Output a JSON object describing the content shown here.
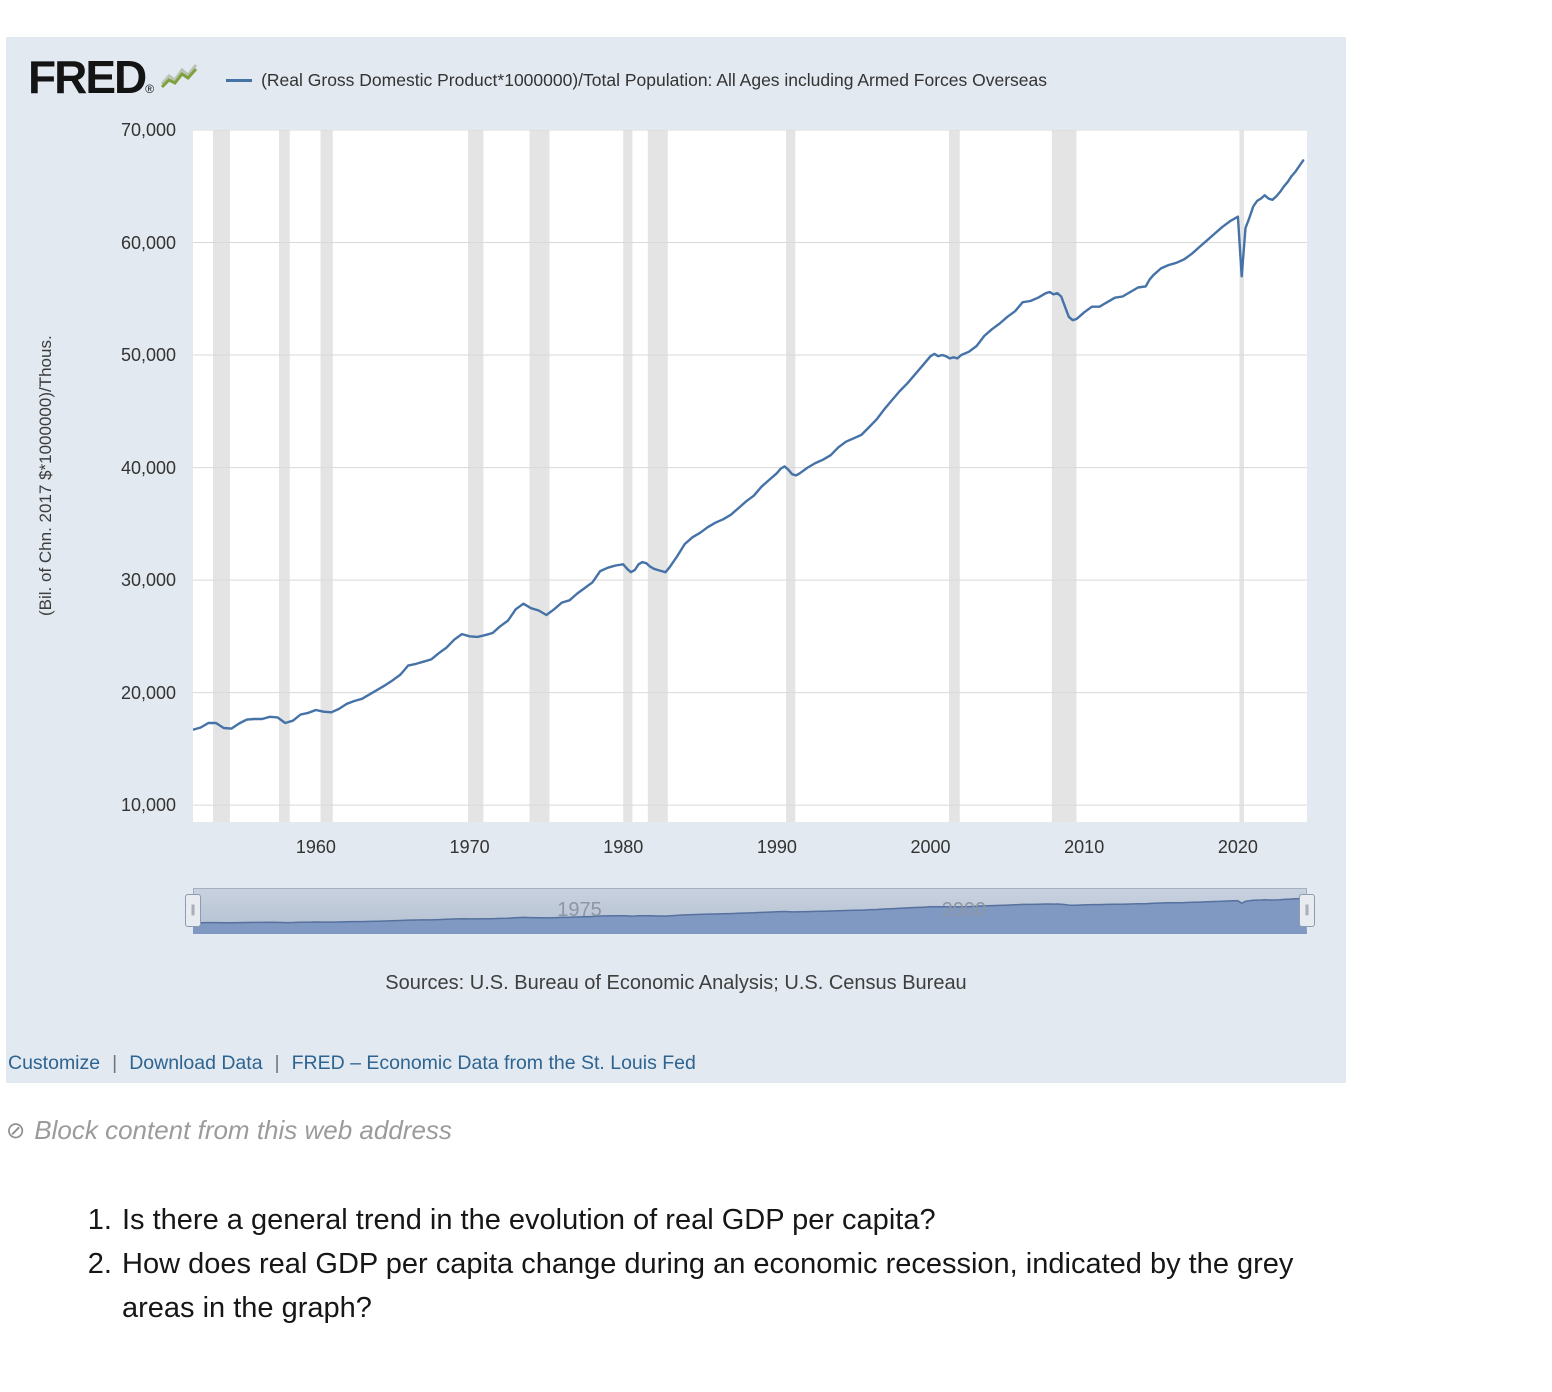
{
  "embed": {
    "logo_text": "FRED",
    "logo_reg": "®",
    "legend_label": "(Real Gross Domestic Product*1000000)/Total Population: All Ages including Armed Forces Overseas",
    "sources": "Sources: U.S. Bureau of Economic Analysis; U.S. Census Bureau",
    "links": [
      {
        "label": "Customize"
      },
      {
        "label": "Download Data"
      },
      {
        "label": "FRED – Economic Data from the St. Louis Fed"
      }
    ],
    "link_separator": "|"
  },
  "icons": {
    "blocked_glyph": "⊘",
    "slider_handle_glyph": "∥"
  },
  "block_note": "Block content from this web address",
  "questions": {
    "items": [
      "Is there a general trend in the evolution of real GDP per capita?",
      "How does real GDP per capita change during an economic recession, indicated by the grey areas in the graph?"
    ]
  },
  "chart_data": {
    "type": "line",
    "title": "(Real Gross Domestic Product*1000000)/Total Population: All Ages including Armed Forces Overseas",
    "ylabel": "(Bil. of Chn. 2017 $*1000000)/Thous.",
    "xlabel": "",
    "xlim": [
      1952,
      2024.5
    ],
    "ylim": [
      8500,
      70000
    ],
    "grid": "horizontal",
    "legend_position": "top",
    "y_ticks": [
      {
        "v": 10000,
        "label": "10,000"
      },
      {
        "v": 20000,
        "label": "20,000"
      },
      {
        "v": 30000,
        "label": "30,000"
      },
      {
        "v": 40000,
        "label": "40,000"
      },
      {
        "v": 50000,
        "label": "50,000"
      },
      {
        "v": 60000,
        "label": "60,000"
      },
      {
        "v": 70000,
        "label": "70,000"
      }
    ],
    "x_ticks": [
      {
        "v": 1960,
        "label": "1960"
      },
      {
        "v": 1970,
        "label": "1970"
      },
      {
        "v": 1980,
        "label": "1980"
      },
      {
        "v": 1990,
        "label": "1990"
      },
      {
        "v": 2000,
        "label": "2000"
      },
      {
        "v": 2010,
        "label": "2010"
      },
      {
        "v": 2020,
        "label": "2020"
      }
    ],
    "slider_labels": [
      {
        "x_frac": 0.347,
        "label": "1975"
      },
      {
        "x_frac": 0.692,
        "label": "2000"
      }
    ],
    "recessions": [
      [
        1953.3,
        1954.4
      ],
      [
        1957.6,
        1958.3
      ],
      [
        1960.3,
        1961.1
      ],
      [
        1969.9,
        1970.9
      ],
      [
        1973.9,
        1975.2
      ],
      [
        1980.0,
        1980.6
      ],
      [
        1981.6,
        1982.9
      ],
      [
        1990.6,
        1991.2
      ],
      [
        2001.2,
        2001.9
      ],
      [
        2007.9,
        2009.5
      ],
      [
        2020.1,
        2020.4
      ]
    ],
    "colors": {
      "line": "#4572a7",
      "recession": "#e4e4e4",
      "grid": "#d9d9d9",
      "plot_bg": "#ffffff",
      "embed_bg": "#e2e9f0",
      "mini_fill": "#8099c2",
      "mini_line": "#56719f"
    },
    "series": [
      {
        "name": "(Real Gross Domestic Product*1000000)/Total Population: All Ages including Armed Forces Overseas",
        "points": [
          [
            1952,
            16700
          ],
          [
            1952.5,
            16900
          ],
          [
            1953,
            17300
          ],
          [
            1953.5,
            17300
          ],
          [
            1954,
            16850
          ],
          [
            1954.5,
            16800
          ],
          [
            1955,
            17250
          ],
          [
            1955.5,
            17600
          ],
          [
            1956,
            17650
          ],
          [
            1956.5,
            17650
          ],
          [
            1957,
            17850
          ],
          [
            1957.5,
            17800
          ],
          [
            1958,
            17300
          ],
          [
            1958.5,
            17500
          ],
          [
            1959,
            18050
          ],
          [
            1959.5,
            18200
          ],
          [
            1960,
            18450
          ],
          [
            1960.5,
            18300
          ],
          [
            1961,
            18250
          ],
          [
            1961.5,
            18550
          ],
          [
            1962,
            19000
          ],
          [
            1962.5,
            19250
          ],
          [
            1963,
            19450
          ],
          [
            1963.5,
            19850
          ],
          [
            1964,
            20250
          ],
          [
            1964.5,
            20650
          ],
          [
            1965,
            21100
          ],
          [
            1965.5,
            21600
          ],
          [
            1966,
            22400
          ],
          [
            1966.5,
            22550
          ],
          [
            1967,
            22750
          ],
          [
            1967.5,
            22950
          ],
          [
            1968,
            23500
          ],
          [
            1968.5,
            24000
          ],
          [
            1969,
            24700
          ],
          [
            1969.5,
            25200
          ],
          [
            1970,
            25000
          ],
          [
            1970.5,
            24950
          ],
          [
            1971,
            25100
          ],
          [
            1971.5,
            25300
          ],
          [
            1972,
            25900
          ],
          [
            1972.5,
            26400
          ],
          [
            1973,
            27400
          ],
          [
            1973.5,
            27900
          ],
          [
            1974,
            27500
          ],
          [
            1974.5,
            27300
          ],
          [
            1975,
            26900
          ],
          [
            1975.5,
            27400
          ],
          [
            1976,
            28000
          ],
          [
            1976.5,
            28200
          ],
          [
            1977,
            28800
          ],
          [
            1977.5,
            29300
          ],
          [
            1978,
            29800
          ],
          [
            1978.5,
            30800
          ],
          [
            1979,
            31100
          ],
          [
            1979.5,
            31300
          ],
          [
            1980,
            31400
          ],
          [
            1980.25,
            31000
          ],
          [
            1980.5,
            30700
          ],
          [
            1980.75,
            30900
          ],
          [
            1981,
            31400
          ],
          [
            1981.25,
            31600
          ],
          [
            1981.5,
            31500
          ],
          [
            1981.75,
            31200
          ],
          [
            1982,
            31000
          ],
          [
            1982.25,
            30900
          ],
          [
            1982.5,
            30800
          ],
          [
            1982.75,
            30700
          ],
          [
            1983,
            31100
          ],
          [
            1983.5,
            32100
          ],
          [
            1984,
            33200
          ],
          [
            1984.5,
            33800
          ],
          [
            1985,
            34200
          ],
          [
            1985.5,
            34700
          ],
          [
            1986,
            35100
          ],
          [
            1986.5,
            35400
          ],
          [
            1987,
            35800
          ],
          [
            1987.5,
            36400
          ],
          [
            1988,
            37000
          ],
          [
            1988.5,
            37500
          ],
          [
            1989,
            38300
          ],
          [
            1989.5,
            38900
          ],
          [
            1990,
            39500
          ],
          [
            1990.25,
            39900
          ],
          [
            1990.5,
            40100
          ],
          [
            1990.75,
            39800
          ],
          [
            1991,
            39400
          ],
          [
            1991.25,
            39300
          ],
          [
            1991.5,
            39500
          ],
          [
            1992,
            40000
          ],
          [
            1992.5,
            40400
          ],
          [
            1993,
            40700
          ],
          [
            1993.5,
            41100
          ],
          [
            1994,
            41800
          ],
          [
            1994.5,
            42300
          ],
          [
            1995,
            42600
          ],
          [
            1995.5,
            42900
          ],
          [
            1996,
            43600
          ],
          [
            1996.5,
            44300
          ],
          [
            1997,
            45200
          ],
          [
            1997.5,
            46000
          ],
          [
            1998,
            46800
          ],
          [
            1998.5,
            47500
          ],
          [
            1999,
            48300
          ],
          [
            1999.5,
            49100
          ],
          [
            2000,
            49900
          ],
          [
            2000.25,
            50100
          ],
          [
            2000.5,
            49900
          ],
          [
            2000.75,
            50000
          ],
          [
            2001,
            49900
          ],
          [
            2001.25,
            49700
          ],
          [
            2001.5,
            49800
          ],
          [
            2001.75,
            49700
          ],
          [
            2002,
            50000
          ],
          [
            2002.5,
            50300
          ],
          [
            2003,
            50800
          ],
          [
            2003.5,
            51700
          ],
          [
            2004,
            52300
          ],
          [
            2004.5,
            52800
          ],
          [
            2005,
            53400
          ],
          [
            2005.5,
            53900
          ],
          [
            2006,
            54700
          ],
          [
            2006.5,
            54800
          ],
          [
            2007,
            55100
          ],
          [
            2007.5,
            55500
          ],
          [
            2007.75,
            55600
          ],
          [
            2008,
            55400
          ],
          [
            2008.25,
            55500
          ],
          [
            2008.5,
            55200
          ],
          [
            2008.75,
            54300
          ],
          [
            2009,
            53400
          ],
          [
            2009.25,
            53100
          ],
          [
            2009.5,
            53200
          ],
          [
            2009.75,
            53500
          ],
          [
            2010,
            53800
          ],
          [
            2010.5,
            54300
          ],
          [
            2011,
            54300
          ],
          [
            2011.25,
            54500
          ],
          [
            2011.5,
            54700
          ],
          [
            2012,
            55100
          ],
          [
            2012.5,
            55200
          ],
          [
            2013,
            55600
          ],
          [
            2013.5,
            56000
          ],
          [
            2014,
            56100
          ],
          [
            2014.25,
            56700
          ],
          [
            2014.5,
            57100
          ],
          [
            2015,
            57700
          ],
          [
            2015.5,
            58000
          ],
          [
            2016,
            58200
          ],
          [
            2016.5,
            58500
          ],
          [
            2017,
            59000
          ],
          [
            2017.5,
            59600
          ],
          [
            2018,
            60200
          ],
          [
            2018.5,
            60800
          ],
          [
            2019,
            61400
          ],
          [
            2019.5,
            61900
          ],
          [
            2019.75,
            62100
          ],
          [
            2020,
            62300
          ],
          [
            2020.25,
            57000
          ],
          [
            2020.5,
            61300
          ],
          [
            2020.75,
            62200
          ],
          [
            2021,
            63200
          ],
          [
            2021.25,
            63700
          ],
          [
            2021.5,
            63900
          ],
          [
            2021.75,
            64200
          ],
          [
            2022,
            63900
          ],
          [
            2022.25,
            63800
          ],
          [
            2022.5,
            64100
          ],
          [
            2022.75,
            64500
          ],
          [
            2023,
            65000
          ],
          [
            2023.25,
            65400
          ],
          [
            2023.5,
            65900
          ],
          [
            2023.75,
            66300
          ],
          [
            2024,
            66800
          ],
          [
            2024.25,
            67300
          ]
        ]
      }
    ]
  }
}
